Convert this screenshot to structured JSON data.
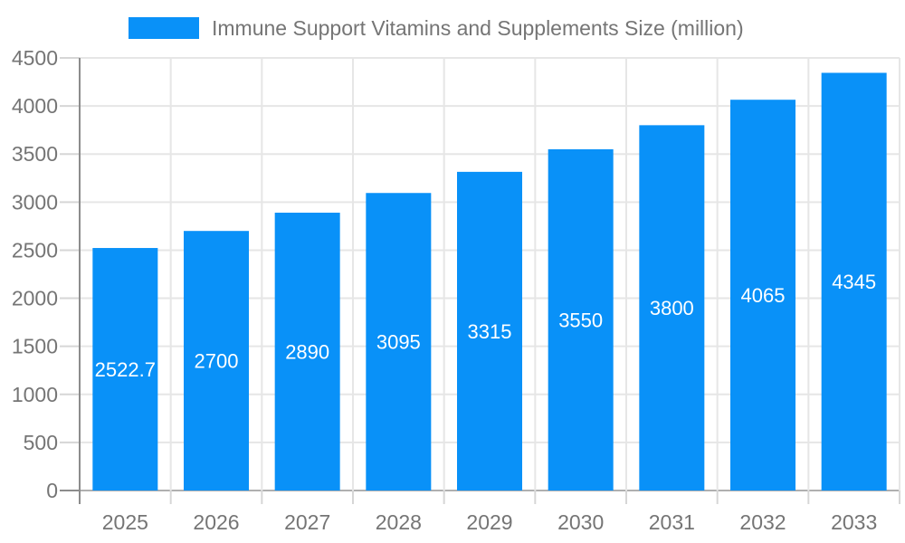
{
  "chart_data": {
    "type": "bar",
    "title": "Immune Support Vitamins and Supplements Size (million)",
    "legend_position": "top",
    "categories": [
      "2025",
      "2026",
      "2027",
      "2028",
      "2029",
      "2030",
      "2031",
      "2032",
      "2033"
    ],
    "series": [
      {
        "name": "Immune Support Vitamins and Supplements Size (million)",
        "values": [
          2522.7,
          2700,
          2890,
          3095,
          3315,
          3550,
          3800,
          4065,
          4345
        ],
        "labels": [
          "2522.7",
          "2700",
          "2890",
          "3095",
          "3315",
          "3550",
          "3800",
          "4065",
          "4345"
        ],
        "color": "#0991f8"
      }
    ],
    "xlabel": "",
    "ylabel": "",
    "ylim": [
      0,
      4500
    ],
    "yticks": [
      0,
      500,
      1000,
      1500,
      2000,
      2500,
      3000,
      3500,
      4000,
      4500
    ],
    "grid": true,
    "value_label_style": "white, centered inside bar"
  },
  "colors": {
    "bar": "#0991f8",
    "grid": "#e6e6e6",
    "baseline": "#b0b0b0",
    "axis": "#8c8c8c",
    "tick": "#d6d6d6",
    "axis_text": "#757575",
    "value_label": "#ffffff",
    "background": "#ffffff"
  }
}
